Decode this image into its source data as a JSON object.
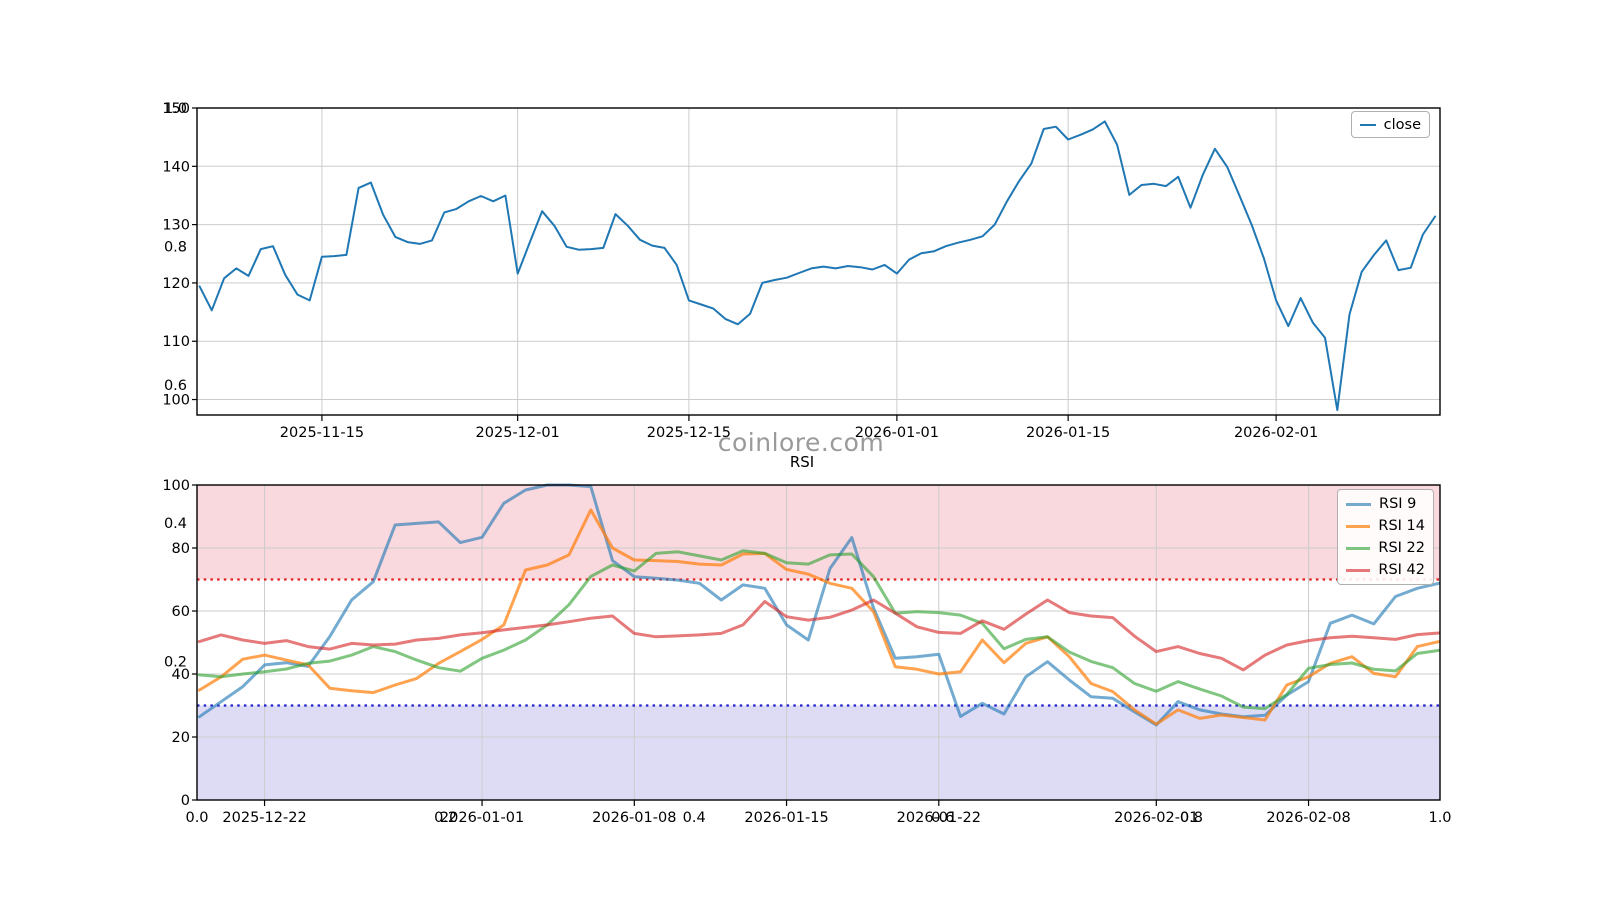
{
  "watermark": "coinlore.com",
  "chart_titles": {
    "price": "",
    "rsi": "RSI"
  },
  "overlay_axis": {
    "note": "leftover normalized 0-1 axis labels overlapping the real tick labels",
    "x_labels": [
      "0.0",
      "0.2",
      "0.4",
      "0.6",
      "0.8",
      "1.0"
    ],
    "y_labels": [
      "1.0",
      "0.8",
      "0.6",
      "0.4",
      "0.2"
    ]
  },
  "chart_data": [
    {
      "type": "line",
      "panel": "price",
      "title": "",
      "x_start_date": "2025-11-05",
      "x_frequency": "daily",
      "x_tick_labels": [
        "2025-11-15",
        "2025-12-01",
        "2025-12-15",
        "2026-01-01",
        "2026-01-15",
        "2026-02-01"
      ],
      "x_tick_day_index": [
        10,
        26,
        40,
        57,
        71,
        88
      ],
      "y_ticks": [
        100,
        110,
        120,
        130,
        140,
        150
      ],
      "ylim": [
        97.35,
        150
      ],
      "grid": true,
      "legend_position": "upper right",
      "series": [
        {
          "name": "close",
          "color": "#1f77b4",
          "opacity": 1,
          "width": 2,
          "values": [
            119.4,
            115.3,
            120.8,
            122.5,
            121.2,
            125.8,
            126.3,
            121.4,
            118.0,
            117.0,
            124.5,
            124.6,
            124.8,
            136.3,
            137.2,
            131.7,
            127.9,
            127.0,
            126.7,
            127.3,
            132.1,
            132.7,
            134.0,
            134.9,
            134.0,
            135.0,
            121.6,
            127.0,
            132.3,
            129.8,
            126.2,
            125.7,
            125.8,
            126.0,
            131.8,
            129.8,
            127.4,
            126.4,
            126.0,
            123.1,
            117.0,
            116.3,
            115.6,
            113.8,
            112.9,
            114.7,
            120.0,
            120.5,
            120.9,
            121.7,
            122.5,
            122.8,
            122.5,
            122.9,
            122.7,
            122.3,
            123.1,
            121.6,
            124.0,
            125.1,
            125.4,
            126.3,
            126.9,
            127.4,
            128.0,
            130.0,
            134.0,
            137.5,
            140.5,
            146.4,
            146.8,
            144.6,
            145.4,
            146.3,
            147.7,
            143.7,
            135.1,
            136.8,
            137.0,
            136.6,
            138.2,
            132.9,
            138.5,
            143.0,
            139.9,
            135.0,
            130.0,
            124.2,
            117.0,
            112.6,
            117.4,
            113.2,
            110.6,
            98.2,
            114.6,
            121.9,
            124.8,
            127.3,
            122.2,
            122.6,
            128.3,
            131.4
          ]
        }
      ]
    },
    {
      "type": "line",
      "panel": "rsi",
      "title": "RSI",
      "x_start_date": "2025-12-19",
      "x_frequency": "daily",
      "x_tick_labels": [
        "2025-12-22",
        "2026-01-01",
        "2026-01-08",
        "2026-01-15",
        "2026-01-22",
        "2026-02-01",
        "2026-02-08"
      ],
      "x_tick_day_index": [
        3,
        13,
        20,
        27,
        34,
        44,
        51
      ],
      "y_ticks": [
        0,
        20,
        40,
        60,
        80,
        100
      ],
      "ylim": [
        0,
        100
      ],
      "grid": true,
      "legend_position": "upper right",
      "overbought_level": 70,
      "oversold_level": 30,
      "overbought_band": [
        70,
        100
      ],
      "oversold_band": [
        0,
        30
      ],
      "band_colors": {
        "overbought": "#f9d8de",
        "oversold": "#dedcf5"
      },
      "threshold_colors": {
        "overbought": "#e32020",
        "oversold": "#2222cc"
      },
      "series": [
        {
          "name": "RSI 9",
          "color": "#1f77b4",
          "opacity": 0.62,
          "width": 3,
          "values": [
            26.4,
            31.2,
            36.0,
            42.9,
            43.6,
            42.4,
            51.9,
            63.5,
            69.3,
            87.3,
            87.8,
            88.3,
            81.7,
            83.4,
            94.2,
            98.4,
            100,
            100,
            99.5,
            76.0,
            70.9,
            70.4,
            69.8,
            68.8,
            63.5,
            68.3,
            67.2,
            55.6,
            50.8,
            73.5,
            83.3,
            61.0,
            45.0,
            45.5,
            46.3,
            26.5,
            30.7,
            27.3,
            39.1,
            43.9,
            38.1,
            32.8,
            32.3,
            28.0,
            23.8,
            31.2,
            28.6,
            27.3,
            26.4,
            26.9,
            33.3,
            37.6,
            56.1,
            58.7,
            55.9,
            64.6,
            67.2,
            68.8
          ]
        },
        {
          "name": "RSI 14",
          "color": "#ff7f0e",
          "opacity": 0.72,
          "width": 3,
          "values": [
            34.9,
            39.1,
            44.7,
            46.0,
            44.4,
            42.9,
            35.5,
            34.7,
            34.1,
            36.5,
            38.6,
            43.4,
            47.1,
            51.0,
            55.6,
            73.0,
            74.6,
            77.8,
            92.1,
            80.0,
            76.2,
            76.0,
            75.7,
            74.9,
            74.6,
            78.1,
            78.3,
            73.2,
            71.7,
            68.8,
            67.2,
            59.8,
            42.3,
            41.5,
            40.0,
            40.7,
            50.8,
            43.6,
            49.7,
            51.8,
            45.5,
            37.0,
            34.4,
            28.6,
            24.1,
            28.6,
            25.9,
            27.0,
            26.2,
            25.4,
            36.5,
            39.1,
            43.4,
            45.5,
            40.2,
            39.1,
            48.7,
            50.3
          ]
        },
        {
          "name": "RSI 22",
          "color": "#2ca02c",
          "opacity": 0.6,
          "width": 3,
          "values": [
            39.7,
            39.1,
            40.0,
            40.7,
            41.6,
            43.4,
            44.1,
            46.0,
            48.7,
            47.1,
            44.4,
            42.0,
            40.9,
            45.0,
            47.6,
            50.8,
            55.6,
            62.0,
            71.0,
            74.6,
            72.7,
            78.3,
            78.8,
            77.5,
            76.2,
            79.1,
            78.3,
            75.3,
            74.9,
            77.8,
            78.1,
            70.9,
            59.3,
            59.8,
            59.5,
            58.7,
            56.1,
            48.0,
            51.0,
            51.8,
            47.0,
            44.0,
            42.0,
            37.0,
            34.5,
            37.6,
            35.2,
            33.0,
            29.5,
            29.0,
            33.5,
            41.8,
            43.0,
            43.5,
            41.5,
            41.0,
            46.5,
            47.5
          ]
        },
        {
          "name": "RSI 42",
          "color": "#d62728",
          "opacity": 0.62,
          "width": 3,
          "values": [
            50.3,
            52.4,
            50.8,
            49.7,
            50.6,
            48.7,
            47.9,
            49.7,
            49.2,
            49.5,
            50.8,
            51.3,
            52.4,
            53.1,
            54.0,
            54.8,
            55.6,
            56.6,
            57.7,
            58.4,
            52.9,
            51.8,
            52.1,
            52.4,
            52.9,
            55.6,
            63.0,
            58.2,
            57.1,
            58.0,
            60.3,
            63.5,
            59.3,
            55.0,
            53.2,
            52.9,
            56.9,
            54.2,
            59.0,
            63.5,
            59.5,
            58.4,
            57.9,
            52.0,
            47.1,
            48.7,
            46.5,
            45.0,
            41.3,
            46.0,
            49.2,
            50.6,
            51.5,
            52.0,
            51.5,
            51.0,
            52.5,
            53.0
          ]
        }
      ]
    }
  ],
  "style": {
    "grid_color": "#cccccc",
    "spine_color": "#000000",
    "tick_label_color": "#000000",
    "watermark_color": "#9a9a9a",
    "background": "#ffffff"
  }
}
